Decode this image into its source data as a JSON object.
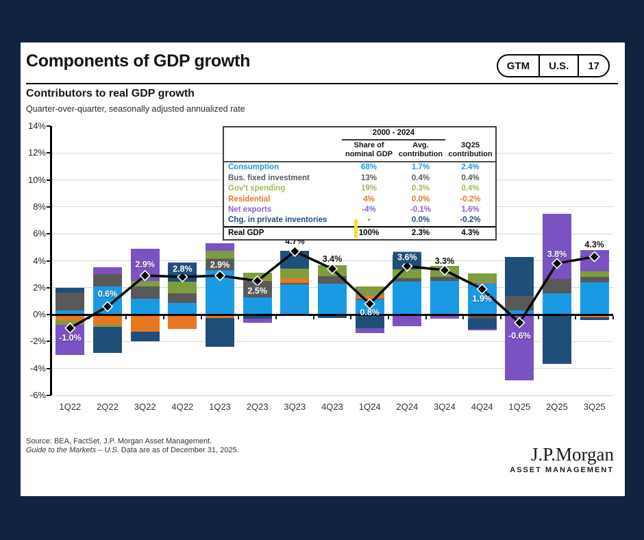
{
  "page": {
    "background": "#122340",
    "card_background": "#FFFFFF"
  },
  "header": {
    "title": "Components of GDP growth",
    "gtm_pill": {
      "label": "GTM",
      "region": "U.S.",
      "page_number": "17"
    }
  },
  "footer": {
    "source_line1": "Source: BEA, FactSet, J.P. Morgan Asset Management.",
    "source_line2_italic": "Guide to the Markets – U.S.",
    "source_line2_rest": " Data are as of December 31, 2025.",
    "logo_name": "J.P.Morgan",
    "logo_sub": "ASSET MANAGEMENT"
  },
  "chart_data": {
    "type": "bar",
    "subtype": "stacked-bars-with-line-overlay",
    "title": "Contributors to real GDP growth",
    "subtitle": "Quarter-over-quarter, seasonally adjusted annualized rate",
    "y_axis": {
      "min": -6,
      "max": 14,
      "step": 2,
      "suffix": "%"
    },
    "grid": true,
    "categories": [
      "1Q22",
      "2Q22",
      "3Q22",
      "4Q22",
      "1Q23",
      "2Q23",
      "3Q23",
      "4Q23",
      "1Q24",
      "2Q24",
      "3Q24",
      "4Q24",
      "1Q25",
      "2Q25",
      "3Q25"
    ],
    "stack_order": [
      "consumption",
      "bus_fixed",
      "residential",
      "govt",
      "inventories",
      "net_exports"
    ],
    "series": [
      {
        "key": "consumption",
        "name": "Consumption",
        "color": "#1B9AE4",
        "values": [
          0.3,
          2.1,
          1.2,
          0.85,
          3.6,
          1.3,
          2.25,
          2.3,
          1.1,
          2.45,
          2.5,
          2.35,
          0.3,
          1.6,
          2.4
        ]
      },
      {
        "key": "bus_fixed",
        "name": "Bus. fixed investment",
        "color": "#595959",
        "values": [
          1.35,
          0.9,
          0.9,
          0.75,
          0.0,
          1.2,
          0.1,
          0.55,
          0.1,
          0.25,
          0.3,
          -0.3,
          1.1,
          1.05,
          0.4
        ]
      },
      {
        "key": "residential",
        "name": "Residential",
        "color": "#E87722",
        "values": [
          -0.45,
          -0.75,
          -1.25,
          -1.05,
          -0.25,
          0.05,
          0.35,
          0.0,
          0.25,
          0.0,
          -0.1,
          0.1,
          0.0,
          -0.1,
          -0.2
        ]
      },
      {
        "key": "govt",
        "name": "Gov't spending",
        "color": "#7E9D3E",
        "values": [
          -0.3,
          -0.15,
          0.4,
          0.85,
          1.15,
          0.55,
          0.7,
          0.8,
          0.65,
          0.65,
          0.8,
          0.6,
          0.0,
          0.0,
          0.4
        ]
      },
      {
        "key": "inventories",
        "name": "Chg. in private inventories",
        "color": "#1F4E79",
        "values": [
          0.35,
          -1.95,
          -0.75,
          1.2,
          -2.15,
          -0.3,
          1.35,
          -0.25,
          -1.0,
          1.1,
          0.0,
          -0.75,
          2.9,
          -3.55,
          -0.2
        ]
      },
      {
        "key": "net_exports",
        "name": "Net exports",
        "color": "#7B52C2",
        "values": [
          -2.25,
          0.5,
          2.4,
          0.2,
          0.55,
          -0.3,
          -0.05,
          0.0,
          -0.35,
          -0.85,
          -0.2,
          -0.1,
          -4.9,
          4.85,
          1.6
        ]
      }
    ],
    "line": {
      "name": "Real GDP",
      "color": "#000000",
      "marker": "diamond",
      "values": [
        -1.0,
        0.6,
        2.9,
        2.8,
        2.9,
        2.5,
        4.7,
        3.4,
        0.8,
        3.6,
        3.3,
        1.9,
        -0.6,
        3.8,
        4.3
      ]
    },
    "point_labels": [
      {
        "text": "-1.0%",
        "style": "white",
        "y": -1.75
      },
      {
        "text": "0.6%",
        "style": "white",
        "y": 1.55
      },
      {
        "text": "2.9%",
        "style": "white",
        "y": 3.7
      },
      {
        "text": "2.8%",
        "style": "box-navy",
        "y": 3.4
      },
      {
        "text": "2.9%",
        "style": "box-gray",
        "y": 3.7
      },
      {
        "text": "2.5%",
        "style": "box-gray",
        "y": 1.75
      },
      {
        "text": "4.7%",
        "style": "dark",
        "y": 5.45
      },
      {
        "text": "3.4%",
        "style": "dark",
        "y": 4.15
      },
      {
        "text": "0.8%",
        "style": "white",
        "y": 0.15
      },
      {
        "text": "3.6%",
        "style": "box-navy",
        "y": 4.25
      },
      {
        "text": "3.3%",
        "style": "dark",
        "y": 4.0
      },
      {
        "text": "1.9%",
        "style": "white",
        "y": 1.2
      },
      {
        "text": "-0.6%",
        "style": "white",
        "y": -1.55
      },
      {
        "text": "3.8%",
        "style": "white",
        "y": 4.5
      },
      {
        "text": "4.3%",
        "style": "dark",
        "y": 5.2
      }
    ],
    "legend_table": {
      "group_header": "2000 - 2024",
      "columns": [
        "Share of\nnominal GDP",
        "Avg.\ncontribution",
        "3Q25\ncontribution"
      ],
      "rows": [
        {
          "label": "Consumption",
          "color": "#1B9AE4",
          "values": [
            "68%",
            "1.7%",
            "2.4%"
          ]
        },
        {
          "label": "Bus. fixed investment",
          "color": "#595959",
          "values": [
            "13%",
            "0.4%",
            "0.4%"
          ]
        },
        {
          "label": "Gov't spending",
          "color": "#9BBB59",
          "values": [
            "19%",
            "0.3%",
            "0.4%"
          ]
        },
        {
          "label": "Residential",
          "color": "#E87722",
          "values": [
            "4%",
            "0.0%",
            "-0.2%"
          ]
        },
        {
          "label": "Net exports",
          "color": "#8A63D2",
          "values": [
            "-4%",
            "-0.1%",
            "1.6%"
          ]
        },
        {
          "label": "Chg. in private inventories",
          "color": "#1F4E79",
          "values": [
            "-",
            "0.0%",
            "-0.2%"
          ]
        }
      ],
      "total_row": {
        "label": "Real GDP",
        "color": "#000000",
        "values": [
          "100%",
          "2.3%",
          "4.3%"
        ]
      }
    }
  }
}
